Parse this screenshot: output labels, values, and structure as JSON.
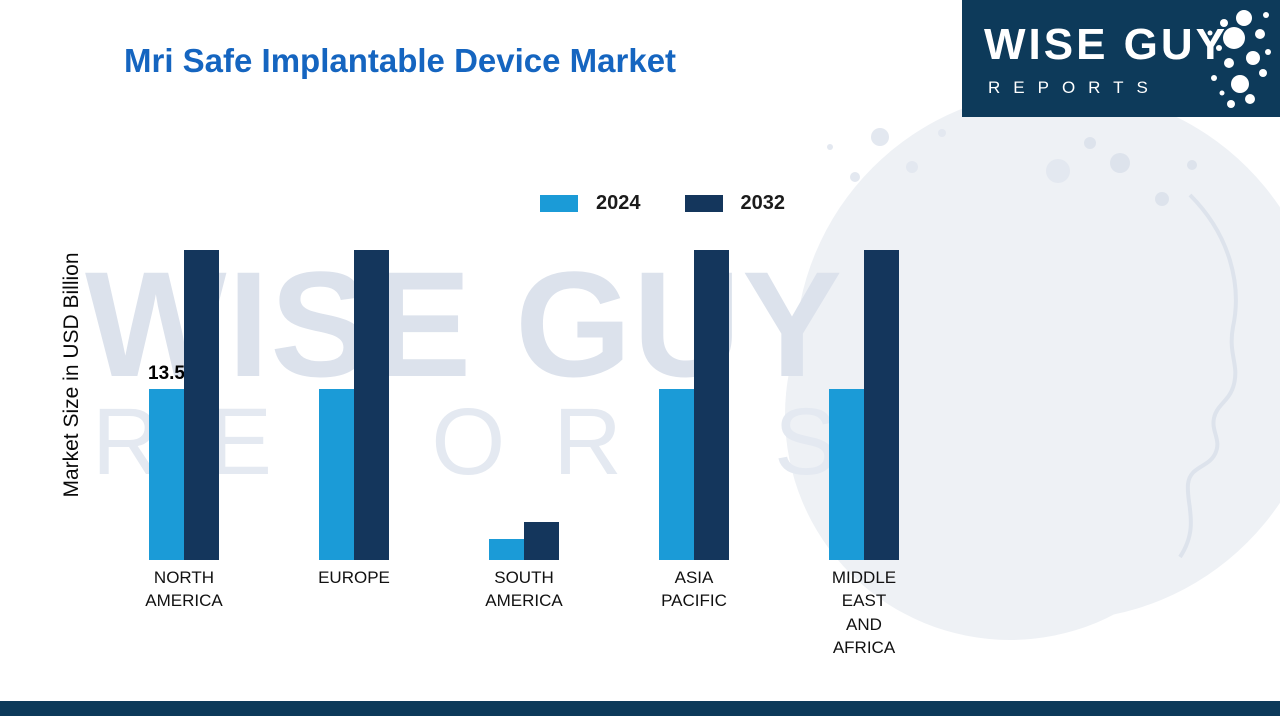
{
  "page": {
    "title": "Mri Safe Implantable Device Market",
    "title_color": "#1565c0"
  },
  "logo": {
    "line1": "WISE GUY",
    "line2": "REPORTS",
    "bg_color": "#0d3a5a"
  },
  "watermark": {
    "line1": "WISE GUY",
    "line2": "REPORTS"
  },
  "footer": {
    "bar_color": "#0d3a5a"
  },
  "chart_data": {
    "type": "bar",
    "title": "Mri Safe Implantable Device Market",
    "ylabel": "Market Size in USD Billion",
    "categories": [
      "NORTH AMERICA",
      "EUROPE",
      "SOUTH AMERICA",
      "ASIA PACIFIC",
      "MIDDLE EAST AND AFRICA"
    ],
    "series": [
      {
        "name": "2024",
        "color": "#1b9bd7",
        "values": [
          13.5,
          13.5,
          1.7,
          13.5,
          13.5
        ]
      },
      {
        "name": "2032",
        "color": "#14365c",
        "values": [
          24.5,
          24.5,
          3.0,
          24.5,
          24.5
        ]
      }
    ],
    "bar_labels": [
      {
        "category": "NORTH AMERICA",
        "series": "2024",
        "text": "13.5"
      }
    ],
    "ylim": [
      0,
      25
    ],
    "grid": false,
    "legend_position": "top"
  }
}
